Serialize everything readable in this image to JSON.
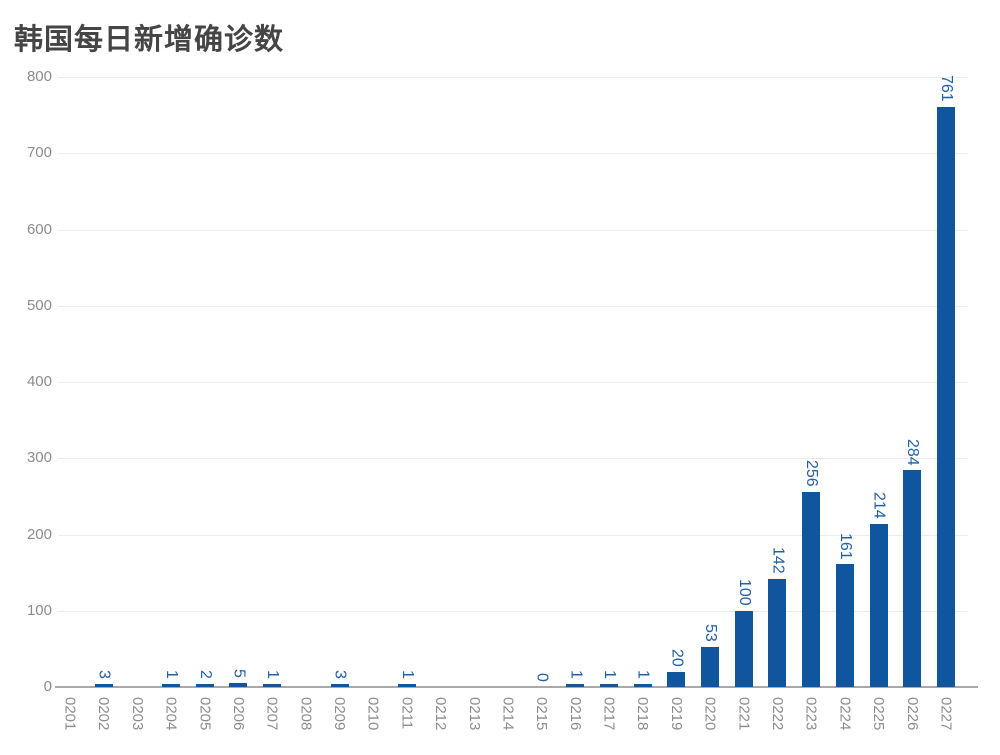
{
  "title": "韩国每日新增确诊数",
  "colors": {
    "bar": "#0f569e",
    "value_label": "#2361a5",
    "axis_label": "#8c8c8c",
    "gridline": "#ececec",
    "axis_line": "#a9a9a9",
    "title": "#454545",
    "background": "#ffffff"
  },
  "chart_data": {
    "type": "bar",
    "title": "韩国每日新增确诊数",
    "categories": [
      "0201",
      "0202",
      "0203",
      "0204",
      "0205",
      "0206",
      "0207",
      "0208",
      "0209",
      "0210",
      "0211",
      "0212",
      "0213",
      "0214",
      "0215",
      "0216",
      "0217",
      "0218",
      "0219",
      "0220",
      "0221",
      "0222",
      "0223",
      "0224",
      "0225",
      "0226",
      "0227"
    ],
    "values": [
      null,
      3,
      null,
      1,
      2,
      5,
      1,
      null,
      3,
      null,
      1,
      null,
      null,
      null,
      0,
      1,
      1,
      1,
      20,
      53,
      100,
      142,
      256,
      161,
      214,
      284,
      761
    ],
    "xlabel": "",
    "ylabel": "",
    "ylim": [
      0,
      800
    ],
    "y_ticks": [
      0,
      100,
      200,
      300,
      400,
      500,
      600,
      700,
      800
    ],
    "grid": true,
    "legend": false,
    "bar_labels_shown": true,
    "label_rotation": "vertical-90cw"
  }
}
